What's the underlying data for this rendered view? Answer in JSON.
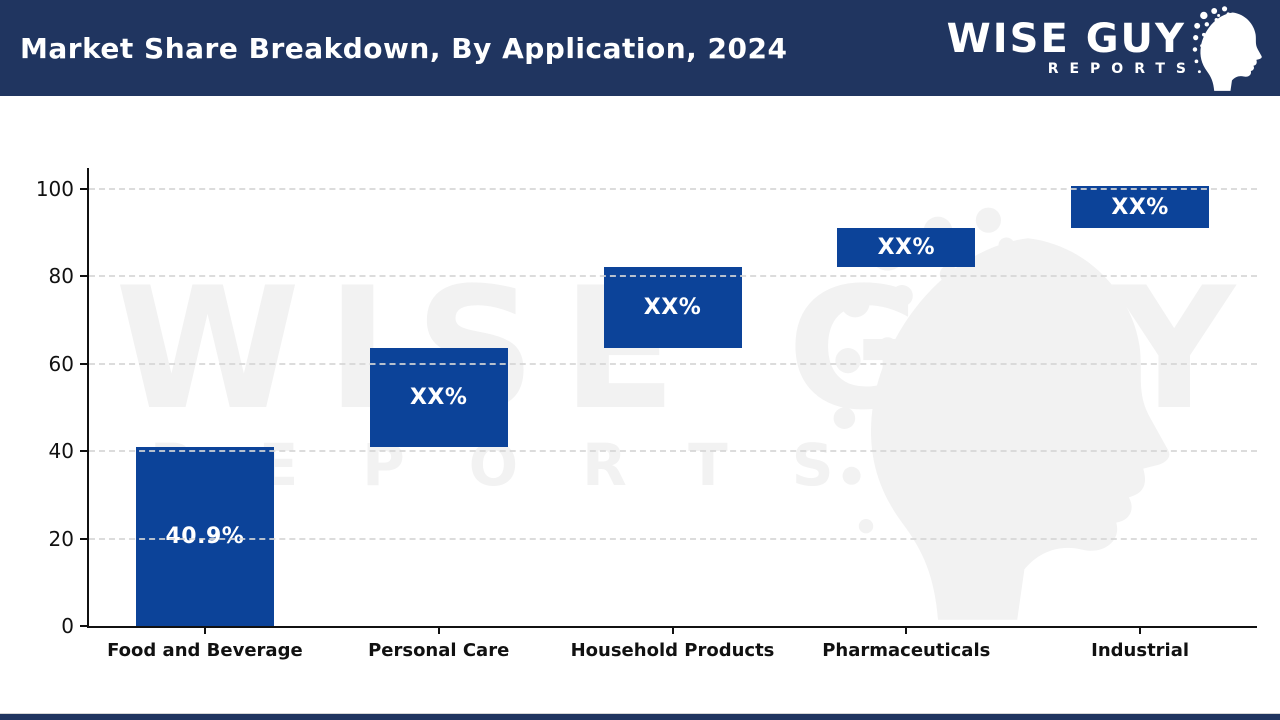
{
  "header": {
    "title": "Market Share Breakdown, By Application, 2024",
    "logo": {
      "line1": "WISE GUY",
      "line2": "REPORTS"
    },
    "bg_color": "#203560",
    "text_color": "#ffffff"
  },
  "watermark": {
    "line1": "WISE GUY",
    "line2": "REPORTS"
  },
  "chart_data": {
    "type": "bar",
    "subtype": "waterfall",
    "title": "Market Share Breakdown, By Application, 2024",
    "categories": [
      "Food and Beverage",
      "Personal Care",
      "Household Products",
      "Pharmaceuticals",
      "Industrial"
    ],
    "series": [
      {
        "name": "Market Share %",
        "segments": [
          {
            "category": "Food and Beverage",
            "start": 0,
            "end": 40.9,
            "label": "40.9%"
          },
          {
            "category": "Personal Care",
            "start": 40.9,
            "end": 63.5,
            "label": "XX%"
          },
          {
            "category": "Household Products",
            "start": 63.5,
            "end": 82.0,
            "label": "XX%"
          },
          {
            "category": "Pharmaceuticals",
            "start": 82.0,
            "end": 91.0,
            "label": "XX%"
          },
          {
            "category": "Industrial",
            "start": 91.0,
            "end": 100.5,
            "label": "XX%"
          }
        ]
      }
    ],
    "xlabel": "",
    "ylabel": "",
    "ylim": [
      0,
      105
    ],
    "yticks": [
      0,
      20,
      40,
      60,
      80,
      100
    ],
    "grid": "horizontal-dashed",
    "legend": "none",
    "bar_color": "#0c4399",
    "bar_label_color": "#ffffff",
    "axis_color": "#111111",
    "grid_color": "#d6d6d6"
  },
  "footer": {
    "bg_color": "#203560"
  }
}
